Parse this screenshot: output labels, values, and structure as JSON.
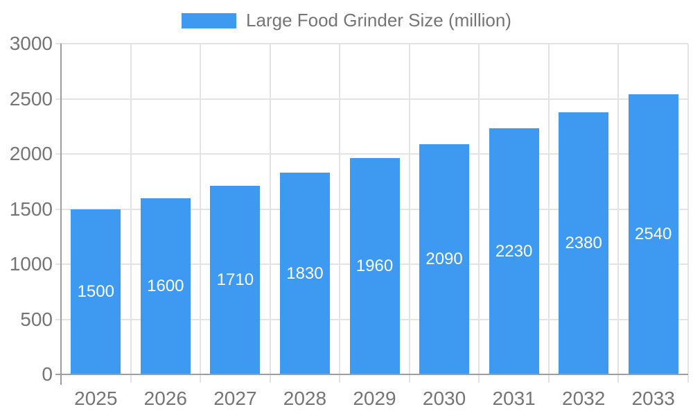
{
  "chart_data": {
    "type": "bar",
    "title": "Large Food Grinder Size (million)",
    "categories": [
      "2025",
      "2026",
      "2027",
      "2028",
      "2029",
      "2030",
      "2031",
      "2032",
      "2033"
    ],
    "series": [
      {
        "name": "Large Food Grinder Size (million)",
        "values": [
          1500,
          1600,
          1710,
          1830,
          1960,
          2090,
          2230,
          2380,
          2540
        ]
      }
    ],
    "value_labels": [
      1500,
      1600,
      1710,
      1830,
      1960,
      2090,
      2230,
      2380,
      2540
    ],
    "yticks": [
      0,
      500,
      1000,
      1500,
      2000,
      2500,
      3000
    ],
    "ylim": [
      0,
      3000
    ],
    "xlabel": "",
    "ylabel": "",
    "grid": true,
    "legend_position": "top-center",
    "value_label_position": "inside-center",
    "colors": {
      "bar": "#3d9af0",
      "value_label_text": "#ffffff",
      "tick_label_text": "#757575",
      "legend_text": "#757575",
      "grid_line": "#e3e3e3",
      "axis_line": "#9e9e9e",
      "background": "#ffffff"
    }
  }
}
